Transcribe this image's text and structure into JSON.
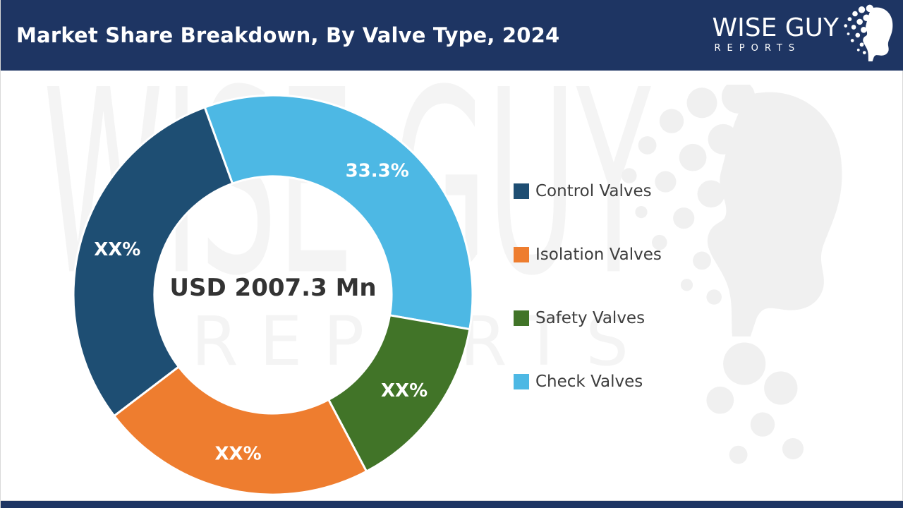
{
  "header": {
    "title": "Market Share Breakdown, By Valve Type, 2024",
    "bg_color": "#1E3563",
    "logo": {
      "line1": "WISE GUY",
      "line2": "REPORTS"
    }
  },
  "watermark": {
    "line1": "WISE GUY",
    "line2": "REPORTS"
  },
  "chart_data": {
    "type": "pie",
    "donut": true,
    "title": "Market Share Breakdown, By Valve Type, 2024",
    "center_label": "USD 2007.3 Mn",
    "start_angle_deg": -20,
    "segments": [
      {
        "name": "Check Valves",
        "value_pct": 33.3,
        "label": "33.3%",
        "color": "#4DB8E4"
      },
      {
        "name": "Safety Valves",
        "value_pct": 14.5,
        "label": "XX%",
        "color": "#417428"
      },
      {
        "name": "Isolation Valves",
        "value_pct": 22.4,
        "label": "XX%",
        "color": "#EE7D2F"
      },
      {
        "name": "Control Valves",
        "value_pct": 29.8,
        "label": "XX%",
        "color": "#1E4E73"
      }
    ],
    "legend": [
      {
        "label": "Control Valves",
        "color": "#1E4E73"
      },
      {
        "label": "Isolation Valves",
        "color": "#EE7D2F"
      },
      {
        "label": "Safety Valves",
        "color": "#417428"
      },
      {
        "label": "Check Valves",
        "color": "#4DB8E4"
      }
    ],
    "legend_position": "right",
    "label_color": "#ffffff",
    "center_label_color": "#333333"
  }
}
